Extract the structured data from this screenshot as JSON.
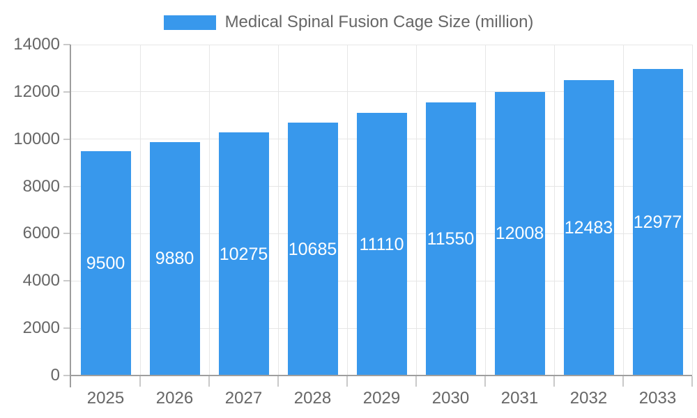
{
  "chart_data": {
    "type": "bar",
    "title": "Medical Spinal Fusion Cage Size (million)",
    "categories": [
      "2025",
      "2026",
      "2027",
      "2028",
      "2029",
      "2030",
      "2031",
      "2032",
      "2033"
    ],
    "values": [
      9500,
      9880,
      10275,
      10685,
      11110,
      11550,
      12008,
      12483,
      12977
    ],
    "y_ticks": [
      0,
      2000,
      4000,
      6000,
      8000,
      10000,
      12000,
      14000
    ],
    "ylim": [
      0,
      14000
    ],
    "xlabel": "",
    "ylabel": "",
    "grid": true,
    "legend_position": "top",
    "bar_color": "#3898EC",
    "bar_label_color": "#FFFFFF",
    "axis_text_color": "#666666",
    "axis_line_color": "#9E9E9E",
    "gridline_color": "#E6E6E6",
    "tick_color": "#C9C9C9"
  },
  "legend": {
    "label": "Medical Spinal Fusion Cage Size (million)",
    "swatch_color": "#3898EC"
  }
}
